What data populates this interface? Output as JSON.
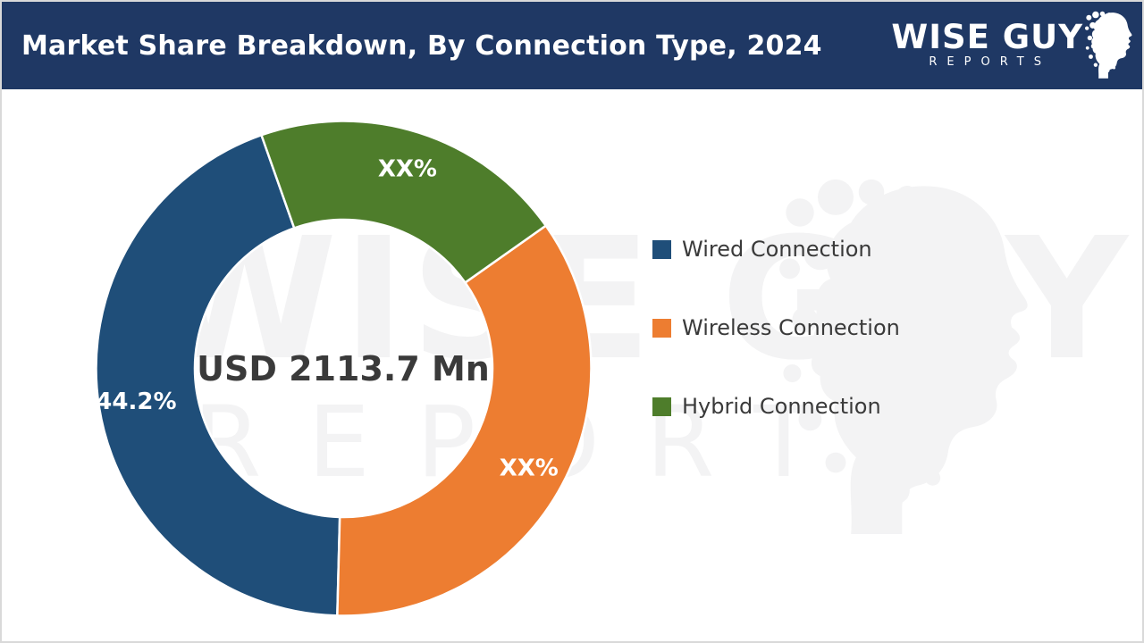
{
  "header": {
    "title": "Market Share Breakdown, By Connection Type, 2024",
    "logo": {
      "line1": "WISE GUY",
      "line2": "REPORTS"
    }
  },
  "watermark": {
    "line1": "WISE GUY",
    "line2": "REPORTS"
  },
  "chart_data": {
    "type": "pie",
    "subtype": "donut",
    "title": "Market Share Breakdown, By Connection Type, 2024",
    "center_label": "USD 2113.7 Mn",
    "legend_position": "right",
    "start_angle_deg": 109.4,
    "direction": "counterclockwise",
    "series": [
      {
        "name": "Wired Connection",
        "slice_label": "44.2%",
        "value_pct": 44.2,
        "color": "#1f4e79"
      },
      {
        "name": "Wireless Connection",
        "slice_label": "XX%",
        "value_pct": 35.2,
        "color": "#ed7d31"
      },
      {
        "name": "Hybrid Connection",
        "slice_label": "XX%",
        "value_pct": 20.6,
        "color": "#4e7d2b"
      }
    ]
  },
  "colors": {
    "header_bg": "#1f3864",
    "text_dark": "#3a3a3a",
    "watermark": "#f3f3f4",
    "slice_gap": "#ffffff"
  }
}
